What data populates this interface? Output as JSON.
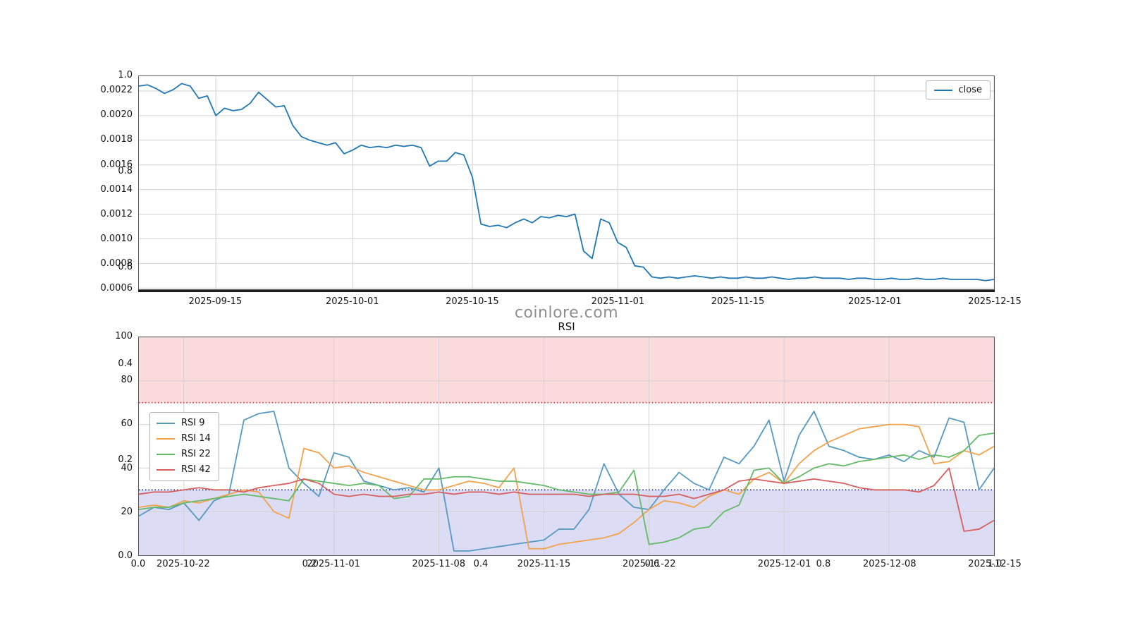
{
  "watermark": "coinlore.com",
  "ghost_axis": {
    "ylabels": [
      "1.0",
      "0.8",
      "0.6",
      "0.4",
      "0.2",
      "0.0"
    ],
    "xlabels": [
      "0.0",
      "0.2",
      "0.4",
      "0.6",
      "0.8",
      "1.0"
    ]
  },
  "chart_data": [
    {
      "type": "line",
      "name": "price",
      "legend_position": "upper right",
      "grid": true,
      "ylim": [
        0.00059,
        0.00232
      ],
      "n": 101,
      "x_start": "2025-09-06",
      "x_end": "2025-12-15",
      "yticks": [
        {
          "v": 0.0022,
          "label": "0.0022"
        },
        {
          "v": 0.002,
          "label": "0.0020"
        },
        {
          "v": 0.0018,
          "label": "0.0018"
        },
        {
          "v": 0.0016,
          "label": "0.0016"
        },
        {
          "v": 0.0014,
          "label": "0.0014"
        },
        {
          "v": 0.0012,
          "label": "0.0012"
        },
        {
          "v": 0.001,
          "label": "0.0010"
        },
        {
          "v": 0.0008,
          "label": "0.0008"
        },
        {
          "v": 0.0006,
          "label": "0.0006"
        }
      ],
      "xticks": [
        {
          "i": 9,
          "label": "2025-09-15"
        },
        {
          "i": 25,
          "label": "2025-10-01"
        },
        {
          "i": 39,
          "label": "2025-10-15"
        },
        {
          "i": 56,
          "label": "2025-11-01"
        },
        {
          "i": 70,
          "label": "2025-11-15"
        },
        {
          "i": 86,
          "label": "2025-12-01"
        },
        {
          "i": 100,
          "label": "2025-12-15"
        }
      ],
      "series": [
        {
          "name": "close",
          "color": "#2077b4",
          "values": [
            0.00224,
            0.00225,
            0.00222,
            0.00218,
            0.00221,
            0.00226,
            0.00224,
            0.00214,
            0.00216,
            0.002,
            0.00206,
            0.00204,
            0.00205,
            0.0021,
            0.00219,
            0.00213,
            0.00207,
            0.00208,
            0.00192,
            0.00183,
            0.0018,
            0.00178,
            0.00176,
            0.00178,
            0.00169,
            0.00172,
            0.00176,
            0.00174,
            0.00175,
            0.00174,
            0.00176,
            0.00175,
            0.00176,
            0.00174,
            0.00159,
            0.00163,
            0.00163,
            0.0017,
            0.00168,
            0.0015,
            0.00112,
            0.0011,
            0.00111,
            0.00109,
            0.00113,
            0.00116,
            0.00113,
            0.00118,
            0.00117,
            0.00119,
            0.00118,
            0.0012,
            0.0009,
            0.00084,
            0.00116,
            0.00113,
            0.00097,
            0.00093,
            0.00078,
            0.00077,
            0.00069,
            0.00068,
            0.00069,
            0.00068,
            0.00069,
            0.0007,
            0.00069,
            0.00068,
            0.00069,
            0.00068,
            0.00068,
            0.00069,
            0.00068,
            0.00068,
            0.00069,
            0.00068,
            0.00067,
            0.00068,
            0.00068,
            0.00069,
            0.00068,
            0.00068,
            0.00068,
            0.00067,
            0.00068,
            0.00068,
            0.00067,
            0.00067,
            0.00068,
            0.00067,
            0.00067,
            0.00068,
            0.00067,
            0.00067,
            0.00068,
            0.00067,
            0.00067,
            0.00067,
            0.00067,
            0.00066,
            0.00067
          ]
        }
      ]
    },
    {
      "type": "line",
      "name": "rsi",
      "title": "RSI",
      "legend_position": "center left",
      "grid": true,
      "ylim": [
        0,
        100
      ],
      "n": 58,
      "x_start": "2025-10-19",
      "x_end": "2025-12-15",
      "yticks": [
        {
          "v": 100,
          "label": "100"
        },
        {
          "v": 80,
          "label": "80"
        },
        {
          "v": 60,
          "label": "60"
        },
        {
          "v": 40,
          "label": "40"
        },
        {
          "v": 20,
          "label": "20"
        }
      ],
      "xticks": [
        {
          "i": 3,
          "label": "2025-10-22"
        },
        {
          "i": 13,
          "label": "2025-11-01"
        },
        {
          "i": 20,
          "label": "2025-11-08"
        },
        {
          "i": 27,
          "label": "2025-11-15"
        },
        {
          "i": 34,
          "label": "2025-11-22"
        },
        {
          "i": 43,
          "label": "2025-12-01"
        },
        {
          "i": 50,
          "label": "2025-12-08"
        },
        {
          "i": 57,
          "label": "2025-12-15"
        }
      ],
      "bands": [
        {
          "from": 70,
          "to": 100,
          "color": "#fbdbdb"
        },
        {
          "from": 0,
          "to": 30,
          "color": "#dcdcf4"
        }
      ],
      "hlines": [
        {
          "v": 70,
          "color": "#d62738"
        },
        {
          "v": 30,
          "color": "#16247e"
        }
      ],
      "series": [
        {
          "name": "RSI 9",
          "color": "#569ac2",
          "values": [
            18,
            22,
            21,
            24,
            16,
            25,
            28,
            62,
            65,
            66,
            40,
            33,
            27,
            47,
            45,
            34,
            32,
            30,
            31,
            29,
            40,
            2,
            2,
            3,
            4,
            5,
            6,
            7,
            12,
            12,
            21,
            42,
            28,
            22,
            21,
            30,
            38,
            33,
            30,
            45,
            42,
            50,
            62,
            34,
            55,
            66,
            50,
            48,
            45,
            44,
            46,
            43,
            48,
            45,
            63,
            61,
            30,
            40
          ]
        },
        {
          "name": "RSI 14",
          "color": "#f3a24b",
          "values": [
            22,
            23,
            22,
            25,
            24,
            26,
            28,
            30,
            29,
            20,
            17,
            49,
            47,
            40,
            41,
            38,
            36,
            34,
            32,
            30,
            30,
            32,
            34,
            33,
            31,
            40,
            3,
            3,
            5,
            6,
            7,
            8,
            10,
            15,
            21,
            25,
            24,
            22,
            27,
            30,
            28,
            35,
            38,
            33,
            42,
            48,
            52,
            55,
            58,
            59,
            60,
            60,
            59,
            42,
            43,
            48,
            46,
            50
          ]
        },
        {
          "name": "RSI 22",
          "color": "#63ba67",
          "values": [
            21,
            22,
            22,
            24,
            25,
            26,
            27,
            28,
            27,
            26,
            25,
            35,
            34,
            33,
            32,
            33,
            32,
            26,
            27,
            35,
            35,
            36,
            36,
            35,
            34,
            34,
            33,
            32,
            30,
            29,
            28,
            28,
            29,
            39,
            5,
            6,
            8,
            12,
            13,
            20,
            23,
            39,
            40,
            33,
            36,
            40,
            42,
            41,
            43,
            44,
            45,
            46,
            44,
            46,
            45,
            48,
            55,
            56
          ]
        },
        {
          "name": "RSI 42",
          "color": "#d85f5f",
          "values": [
            28,
            29,
            29,
            30,
            31,
            30,
            30,
            29,
            31,
            32,
            33,
            35,
            33,
            28,
            27,
            28,
            27,
            27,
            28,
            28,
            29,
            28,
            29,
            29,
            28,
            29,
            28,
            28,
            28,
            28,
            27,
            28,
            28,
            28,
            27,
            27,
            28,
            26,
            28,
            30,
            34,
            35,
            34,
            33,
            34,
            35,
            34,
            33,
            31,
            30,
            30,
            30,
            29,
            32,
            40,
            11,
            12,
            16
          ]
        }
      ]
    }
  ]
}
